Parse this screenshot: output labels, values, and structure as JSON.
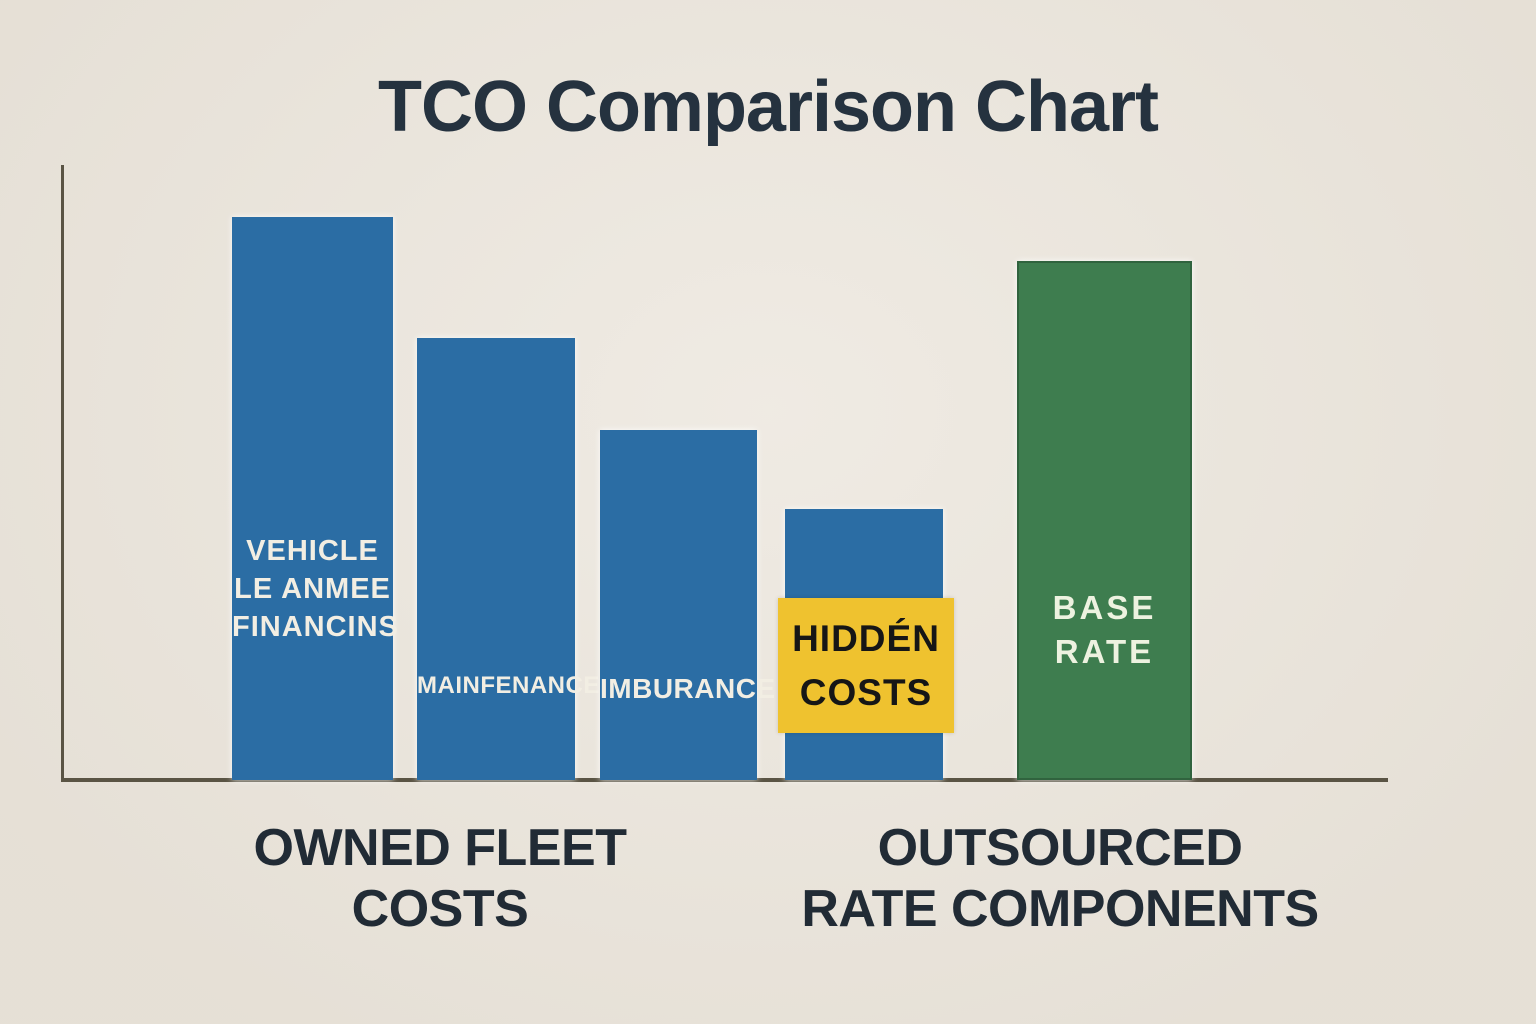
{
  "title": "TCO Comparison Chart",
  "colors": {
    "background": "#EAE4DA",
    "bar_blue": "#2B6DA4",
    "bar_green": "#3E7D4F",
    "badge_yellow": "#EFC22F",
    "axis": "#5A5444",
    "title_text": "#25323F",
    "bar_text": "#F2EEE3",
    "badge_text": "#161616"
  },
  "bars": [
    {
      "id": "vehicle-lease-financing",
      "label_lines": [
        "VEHICLE",
        "LE ANMEE",
        "FINANCINS"
      ],
      "color": "#2B6DA4"
    },
    {
      "id": "maintenance",
      "label_lines": [
        "MAINFENANCE"
      ],
      "color": "#2B6DA4"
    },
    {
      "id": "insurance",
      "label_lines": [
        "IMBURANCE"
      ],
      "color": "#2B6DA4"
    },
    {
      "id": "hidden-costs",
      "badge_lines": [
        "HIDDÉN",
        "COSTS"
      ],
      "color": "#2B6DA4"
    },
    {
      "id": "base-rate",
      "label_lines": [
        "BASE",
        "RATE"
      ],
      "color": "#3E7D4F"
    }
  ],
  "groups": [
    {
      "id": "owned-fleet-costs",
      "lines": [
        "OWNED FLEET",
        "COSTS"
      ]
    },
    {
      "id": "outsourced-rate-components",
      "lines": [
        "OUTSOURCED",
        "RATE COMPONENTS"
      ]
    }
  ],
  "chart_data": {
    "type": "bar",
    "title": "TCO Comparison Chart",
    "categories": [
      "VEHICLE LE ANMEE FINANCINS",
      "MAINFENANCE",
      "IMBURANCE",
      "HIDDÉN COSTS",
      "BASE RATE"
    ],
    "values": [
      91,
      72,
      57,
      44,
      84
    ],
    "value_note": "no numeric axis shown; values are relative bar heights on a 0-100 scale",
    "ylim": [
      0,
      100
    ],
    "xlabel": "",
    "ylabel": "",
    "grid": false,
    "legend": false,
    "bar_colors": [
      "#2B6DA4",
      "#2B6DA4",
      "#2B6DA4",
      "#2B6DA4",
      "#3E7D4F"
    ],
    "group_labels": [
      {
        "label": "OWNED FLEET COSTS",
        "bar_indexes": [
          0,
          1,
          2,
          3
        ]
      },
      {
        "label": "OUTSOURCED RATE COMPONENTS",
        "bar_indexes": [
          4
        ]
      }
    ],
    "annotations": [
      {
        "text": "HIDDÉN COSTS",
        "style": "yellow rectangular badge overlapping 4th bar"
      }
    ]
  }
}
